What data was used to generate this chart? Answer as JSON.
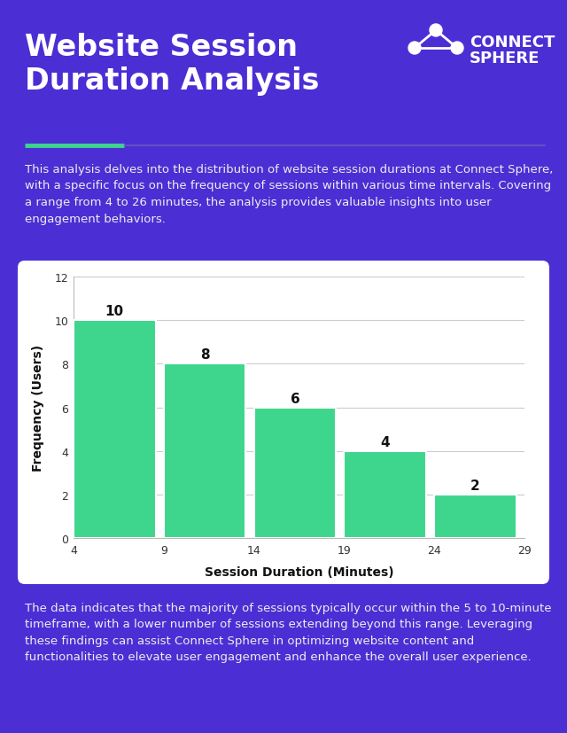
{
  "title_line1": "Website Session",
  "title_line2": "Duration Analysis",
  "logo_text_line1": "CONNECT",
  "logo_text_line2": "SPHERE",
  "bg_color": "#4B2FD4",
  "card_color": "#FFFFFF",
  "bar_color": "#3DD68C",
  "accent_color": "#3DD68C",
  "title_color": "#FFFFFF",
  "body_text_color": "#EEEEEE",
  "axis_label_color": "#111111",
  "bar_label_color": "#111111",
  "tick_color": "#333333",
  "grid_color": "#CCCCCC",
  "sep_line_color": "#8877CC",
  "intro_text": "This analysis delves into the distribution of website session durations at Connect Sphere,\nwith a specific focus on the frequency of sessions within various time intervals. Covering\na range from 4 to 26 minutes, the analysis provides valuable insights into user\nengagement behaviors.",
  "outro_text": "The data indicates that the majority of sessions typically occur within the 5 to 10-minute\ntimeframe, with a lower number of sessions extending beyond this range. Leveraging\nthese findings can assist Connect Sphere in optimizing website content and\nfunctionalities to elevate user engagement and enhance the overall user experience.",
  "xlabel": "Session Duration (Minutes)",
  "ylabel": "Frequency (Users)",
  "bin_left_edges": [
    4,
    9,
    14,
    19,
    24
  ],
  "bin_width": 5,
  "frequencies": [
    10,
    8,
    6,
    4,
    2
  ],
  "xticks": [
    4,
    9,
    14,
    19,
    24,
    29
  ],
  "yticks": [
    0,
    2,
    4,
    6,
    8,
    10,
    12
  ],
  "ylim": [
    0,
    12
  ]
}
